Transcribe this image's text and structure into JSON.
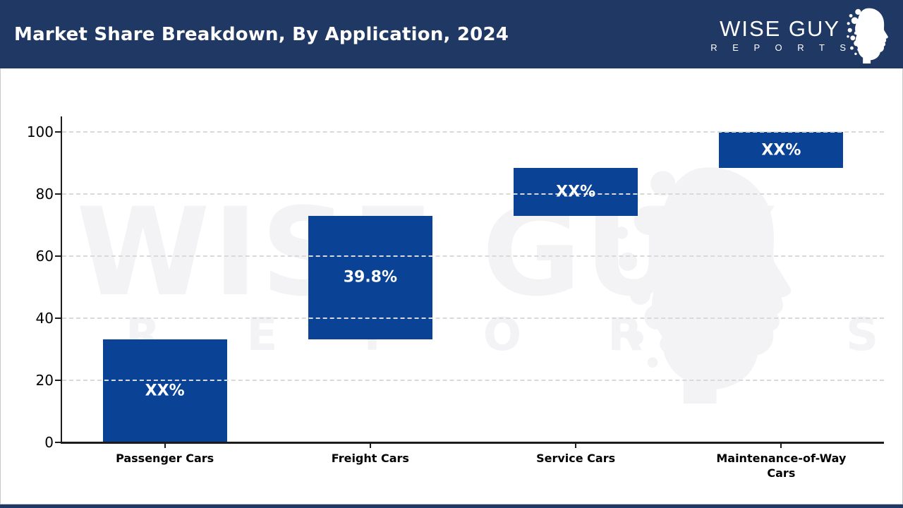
{
  "header": {
    "title": "Market Share Breakdown, By Application, 2024",
    "logo": {
      "line1": "WISE GUY",
      "line2": "R E P O R T S"
    }
  },
  "watermark": {
    "line1": "WISE GUY",
    "line2": "R E P O R T S"
  },
  "colors": {
    "header_bg": "#1f3864",
    "bar": "#0a4396",
    "grid": "#d9d9d9",
    "axis": "#1c1c1c",
    "watermark": "#f3f3f6",
    "bar_label": "#ffffff"
  },
  "chart_data": {
    "type": "bar",
    "subtype": "floating-segment-column",
    "title": "Market Share Breakdown, By Application, 2024",
    "categories": [
      "Passenger Cars",
      "Freight Cars",
      "Service Cars",
      "Maintenance-of-Way Cars"
    ],
    "series": [
      {
        "name": "Market Share (%)",
        "segments": [
          {
            "category": "Passenger Cars",
            "from": 0,
            "to": 33.2,
            "label": "XX%"
          },
          {
            "category": "Freight Cars",
            "from": 33.2,
            "to": 73.0,
            "label": "39.8%"
          },
          {
            "category": "Service Cars",
            "from": 73.0,
            "to": 88.4,
            "label": "XX%"
          },
          {
            "category": "Maintenance-of-Way Cars",
            "from": 88.4,
            "to": 100,
            "label": "XX%"
          }
        ]
      }
    ],
    "xlabel": "",
    "ylabel": "",
    "ylim": [
      0,
      100
    ],
    "yticks": [
      0,
      20,
      40,
      60,
      80,
      100
    ],
    "grid": "horizontal-dashed",
    "legend": "none"
  }
}
